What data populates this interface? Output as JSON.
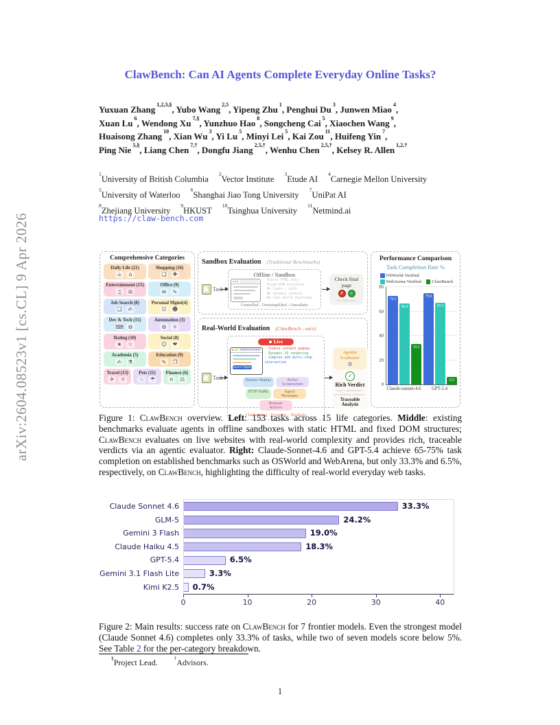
{
  "arxiv_label": "arXiv:2604.08523v1  [cs.CL]  9 Apr 2026",
  "title": "ClawBench: Can AI Agents Complete Everyday Online Tasks?",
  "colors": {
    "accent_purple": "#5456d8",
    "link_blue": "#2b35cc",
    "realworld_accent": "#e05a3a",
    "live_red": "#e8403a",
    "footer_orange": "#e8794c",
    "subtitle_teal": "#4f93a8"
  },
  "authors_lines": [
    [
      {
        "name": "Yuxuan Zhang",
        "sup": "1,2,3,§"
      },
      {
        "name": "Yubo Wang",
        "sup": "2,5"
      },
      {
        "name": "Yipeng Zhu",
        "sup": "1"
      },
      {
        "name": "Penghui Du",
        "sup": "3"
      },
      {
        "name": "Junwen Miao",
        "sup": "4"
      }
    ],
    [
      {
        "name": "Xuan Lu",
        "sup": "6"
      },
      {
        "name": "Wendong Xu",
        "sup": "7,§"
      },
      {
        "name": "Yunzhuo Hao",
        "sup": "8"
      },
      {
        "name": "Songcheng Cai",
        "sup": "5"
      },
      {
        "name": "Xiaochen Wang",
        "sup": "9"
      }
    ],
    [
      {
        "name": "Huaisong Zhang",
        "sup": "10"
      },
      {
        "name": "Xian Wu",
        "sup": "3"
      },
      {
        "name": "Yi Lu",
        "sup": "5"
      },
      {
        "name": "Minyi Lei",
        "sup": "5"
      },
      {
        "name": "Kai Zou",
        "sup": "11"
      },
      {
        "name": "Huifeng Yin",
        "sup": "7"
      }
    ],
    [
      {
        "name": "Ping Nie",
        "sup": "5,§"
      },
      {
        "name": "Liang Chen",
        "sup": "7,†"
      },
      {
        "name": "Dongfu Jiang",
        "sup": "2,5,†"
      },
      {
        "name": "Wenhu Chen",
        "sup": "2,5,†"
      },
      {
        "name": "Kelsey R. Allen",
        "sup": "1,2,†"
      }
    ]
  ],
  "affiliation_lines": [
    [
      {
        "sup": "1",
        "name": "University of British Columbia"
      },
      {
        "sup": "2",
        "name": "Vector Institute"
      },
      {
        "sup": "3",
        "name": "Etude AI"
      },
      {
        "sup": "4",
        "name": "Carnegie Mellon University"
      }
    ],
    [
      {
        "sup": "5",
        "name": "University of Waterloo"
      },
      {
        "sup": "6",
        "name": "Shanghai Jiao Tong University"
      },
      {
        "sup": "7",
        "name": "UniPat AI"
      }
    ],
    [
      {
        "sup": "8",
        "name": "Zhejiang University"
      },
      {
        "sup": "9",
        "name": "HKUST"
      },
      {
        "sup": "10",
        "name": "Tsinghua University"
      },
      {
        "sup": "11",
        "name": "Netmind.ai"
      }
    ]
  ],
  "project_url": "https://claw-bench.com",
  "figure1": {
    "left_panel": {
      "title": "Comprehensive Categories",
      "categories": [
        {
          "label": "Daily Life (21)",
          "color": "#fbdfc0",
          "w": "half",
          "icons": [
            "☕",
            "⌂"
          ]
        },
        {
          "label": "Shopping (16)",
          "color": "#fbdfc0",
          "w": "half",
          "icons": [
            "❑",
            "✚"
          ]
        },
        {
          "label": "Entertainment (15)",
          "color": "#fbd3df",
          "w": "half",
          "icons": [
            "♫",
            "✇"
          ]
        },
        {
          "label": "Office (9)",
          "color": "#d3eef8",
          "w": "half",
          "icons": [
            "✉",
            "✎"
          ]
        },
        {
          "label": "Job Search (8)",
          "color": "#d4e5fb",
          "w": "half",
          "icons": [
            "❏",
            "✍"
          ]
        },
        {
          "label": "Personal Mgmt(4)",
          "color": "#fdf2c4",
          "w": "half",
          "icons": [
            "☑",
            "☻"
          ]
        },
        {
          "label": "Dev & Tech (15)",
          "color": "#d6ecf8",
          "w": "half",
          "icons": [
            "⌨",
            "⚙"
          ]
        },
        {
          "label": "Automation (3)",
          "color": "#e6dcf8",
          "w": "half",
          "icons": [
            "⚙",
            "⚛"
          ]
        },
        {
          "label": "Rating (10)",
          "color": "#fbd3df",
          "w": "half",
          "icons": [
            "★",
            "☆"
          ]
        },
        {
          "label": "Social (8)",
          "color": "#fdf2c4",
          "w": "half",
          "icons": [
            "☺",
            "❤"
          ]
        },
        {
          "label": "Academia (5)",
          "color": "#d2f4e0",
          "w": "half",
          "icons": [
            "✍",
            "⚗"
          ]
        },
        {
          "label": "Education (9)",
          "color": "#fbd9ae",
          "w": "half",
          "icons": [
            "✎",
            "❐"
          ]
        },
        {
          "label": "Travel (13)",
          "color": "#fbd3df",
          "w": "third",
          "icons": [
            "✈",
            "☼"
          ]
        },
        {
          "label": "Pets (11)",
          "color": "#e6dcf8",
          "w": "third",
          "icons": [
            "♘",
            "☂"
          ]
        },
        {
          "label": "Finance (6)",
          "color": "#d2f4e0",
          "w": "third",
          "icons": [
            "¤",
            "⚖"
          ]
        }
      ]
    },
    "middle_panel": {
      "sandbox": {
        "title": "Sandbox Evaluation",
        "subtitle": "(Traditional Benchmarks)",
        "task_label": "Task",
        "box_title": "Offline / Sandbox",
        "bullets": [
          "Static HTML only",
          "Fixed DOM structure",
          "No login / auth",
          "No dynamic content",
          "No real-world challenge"
        ],
        "box_footer": "Controlled - Oversimplified - Unrealistic",
        "check_title": "Check final page",
        "fail_glyph": "✗",
        "pass_glyph": "✓",
        "check_note": "No explanation"
      },
      "realworld": {
        "title": "Real-World Evaluation",
        "subtitle": "(ClawBench - ours)",
        "task_label": "Task",
        "live_label": "Live",
        "browser_url": "google.com/flights",
        "browser_button": "Search flights",
        "bullets": [
          {
            "text": "Cookie consent popups",
            "color": "#d9413d"
          },
          {
            "text": "Dynamic JS rendering",
            "color": "#3a9e4d"
          },
          {
            "text": "Complex and multi-step interaction",
            "color": "#3f6fd8"
          }
        ],
        "pills": [
          {
            "label": "Session Replay",
            "bg": "#cfe5f7",
            "fg": "#49708f"
          },
          {
            "label": "Action Screenshots",
            "bg": "#eadef7",
            "fg": "#7a5fa0"
          },
          {
            "label": "HTTP Traffic",
            "bg": "#d2efd2",
            "fg": "#3f7d46"
          },
          {
            "label": "Agent Messages",
            "bg": "#fbe2b8",
            "fg": "#9a6b2f"
          },
          {
            "label": "Browser Actions",
            "bg": "#fad6e3",
            "fg": "#a05577"
          }
        ],
        "box_footer": "Challenging - Dynamic - Realistic",
        "evaluator_label": "Agentic Evaluator",
        "evaluator_icon_glyph": "⚙",
        "verdict_glyph": "✓",
        "verdict_title": "Rich Verdict",
        "verdict_note": "score + justification + per-evidence references",
        "verdict_footer": "Traceable Analysis"
      }
    }
  },
  "chart_data": [
    {
      "type": "bar",
      "title": "Performance Comparison",
      "subtitle": "Task Completion Rate %",
      "categories": [
        "Claude-sonnet-4.6",
        "GPT-5.4"
      ],
      "series": [
        {
          "name": "OSWorld-Verified",
          "color": "#3d6cdb",
          "values": [
            72.5,
            75.0
          ],
          "labels": [
            "72.5",
            "75.0"
          ]
        },
        {
          "name": "WebArena-Verified",
          "color": "#2ec7b5",
          "values": [
            66.4,
            67.3
          ],
          "labels": [
            "66.4",
            "67.3"
          ]
        },
        {
          "name": "ClawBench",
          "color": "#12901a",
          "values": [
            33.3,
            6.5
          ],
          "labels": [
            "33.3",
            "6.5"
          ]
        }
      ],
      "ylim": [
        0,
        80
      ],
      "yticks": [
        0,
        20,
        40,
        60,
        80
      ],
      "legend_position": "top",
      "grid": "horizontal"
    },
    {
      "type": "bar-horizontal",
      "title": "",
      "xlabel": "",
      "ylabel": "",
      "categories": [
        "Claude Sonnet 4.6",
        "GLM-5",
        "Gemini 3 Flash",
        "Claude Haiku 4.5",
        "GPT-5.4",
        "Gemini 3.1 Flash Lite",
        "Kimi K2.5"
      ],
      "values": [
        33.3,
        24.2,
        19.0,
        18.3,
        6.5,
        3.3,
        0.7
      ],
      "labels": [
        "33.3%",
        "24.2%",
        "19.0%",
        "18.3%",
        "6.5%",
        "3.3%",
        "0.7%"
      ],
      "xlim": [
        0,
        42
      ],
      "xticks": [
        0,
        10,
        20,
        30,
        40
      ],
      "fills": [
        "#b3abe9",
        "#b9b1eb",
        "#c5bff0",
        "#c7c1f0",
        "#dedaf7",
        "#e5e2f9",
        "#efedfb"
      ],
      "bar_border": "#8178d2",
      "grid": false
    }
  ],
  "captions": {
    "figure1": [
      {
        "t": "Figure 1: "
      },
      {
        "t": "ClawBench",
        "sc": true
      },
      {
        "t": " overview. "
      },
      {
        "t": "Left",
        "b": true
      },
      {
        "t": ": 153 tasks across 15 life categories. "
      },
      {
        "t": "Middle",
        "b": true
      },
      {
        "t": ": existing benchmarks evaluate agents in offline sandboxes with static HTML and fixed DOM structures; "
      },
      {
        "t": "ClawBench",
        "sc": true
      },
      {
        "t": " evaluates on live websites with real-world complexity and provides rich, traceable verdicts via an agentic evaluator. "
      },
      {
        "t": "Right:",
        "b": true
      },
      {
        "t": " Claude-Sonnet-4.6 and GPT-5.4 achieve 65-75% task completion on established benchmarks such as OSWorld and WebArena, but only 33.3% and 6.5%, respectively, on "
      },
      {
        "t": "ClawBench",
        "sc": true
      },
      {
        "t": ", highlighting the difficulty of real-world everyday web tasks."
      }
    ],
    "figure2": [
      {
        "t": "Figure 2: Main results: success rate on "
      },
      {
        "t": "ClawBench",
        "sc": true
      },
      {
        "t": " for 7 frontier models. Even the strongest model (Claude Sonnet 4.6) completes only 33.3% of tasks, while two of seven models score below 5%. See Table "
      },
      {
        "t": "2",
        "link": true
      },
      {
        "t": " for the per-category breakdown."
      }
    ]
  },
  "footnote": {
    "items": [
      {
        "sup": "§",
        "text": "Project Lead."
      },
      {
        "sup": "†",
        "text": "Advisors."
      }
    ]
  },
  "page_number": "1"
}
